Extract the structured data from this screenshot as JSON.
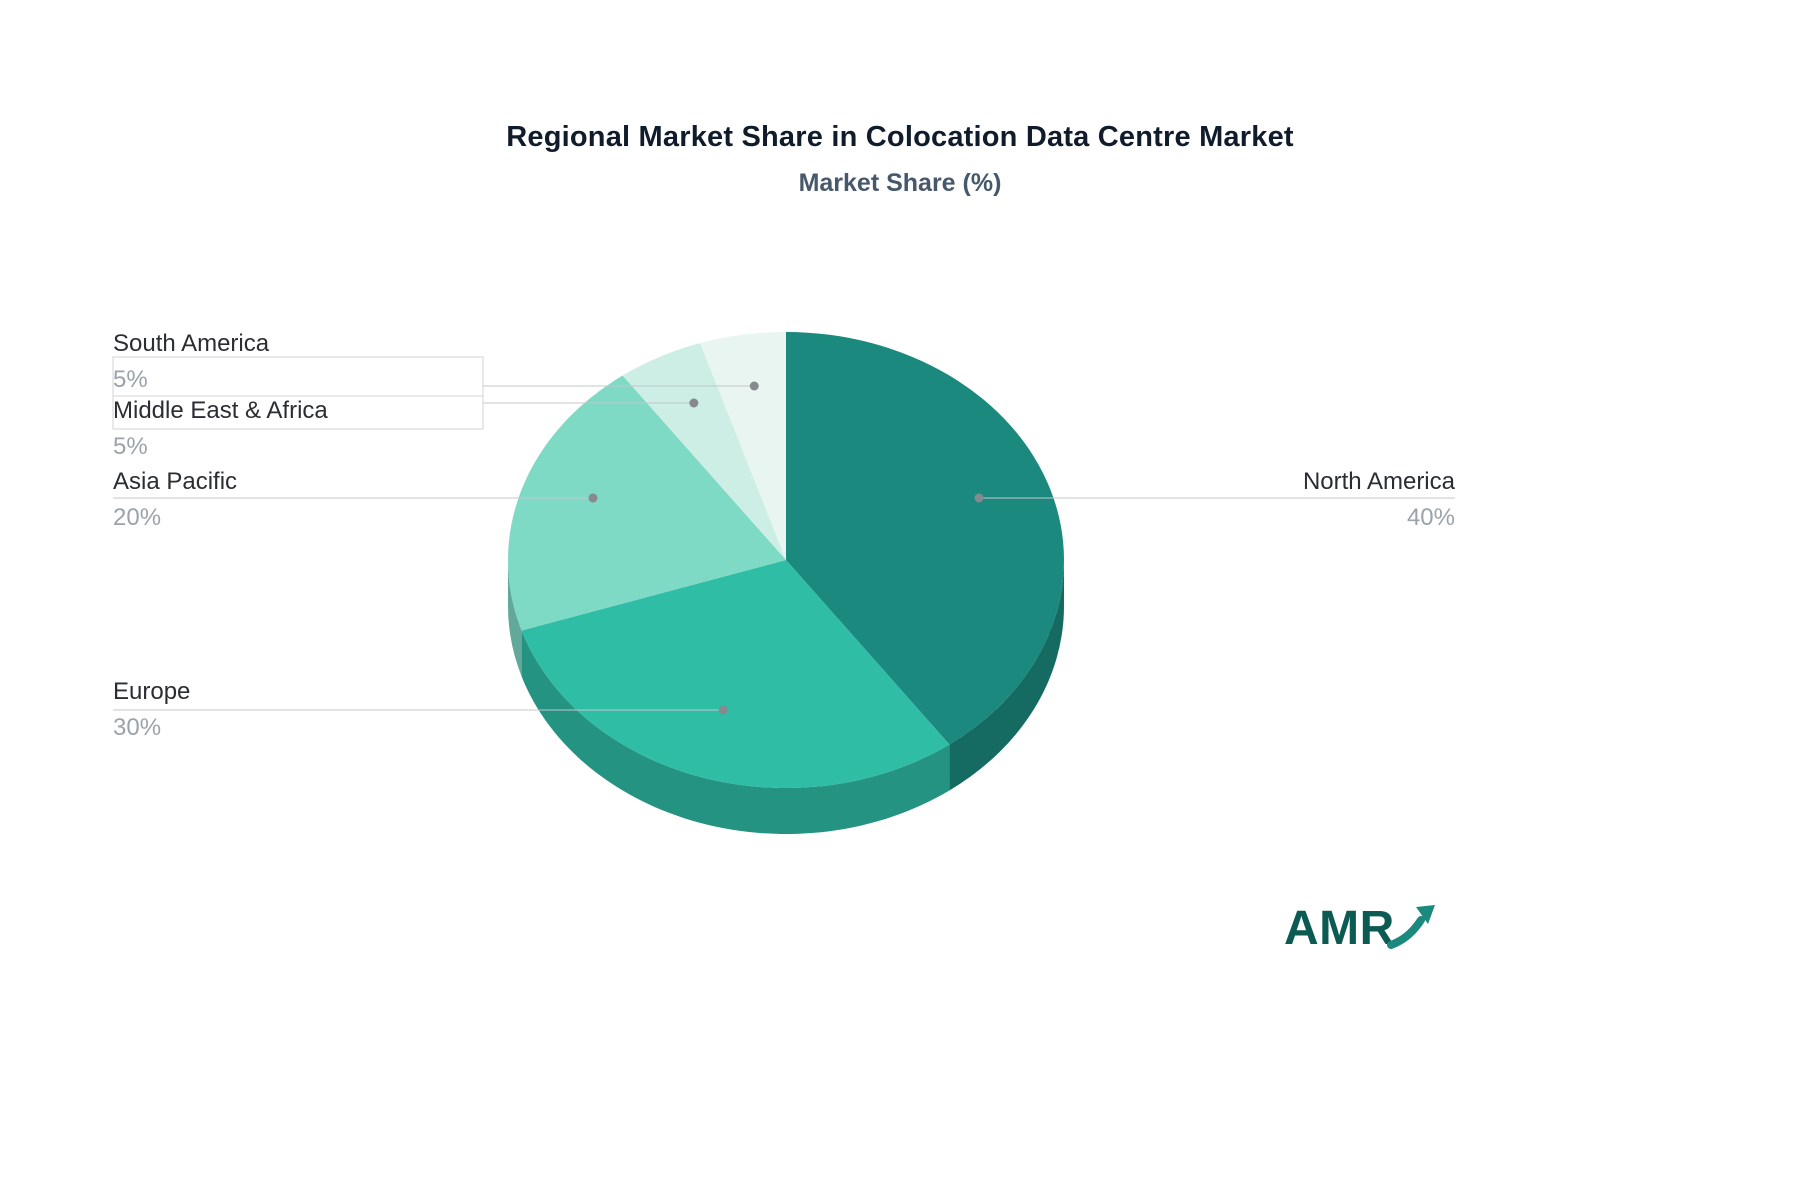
{
  "title": "Regional Market Share in Colocation Data Centre Market",
  "subtitle": "Market Share (%)",
  "logo": {
    "text": "AMR"
  },
  "chart_data": {
    "type": "pie",
    "title": "Regional Market Share in Colocation Data Centre Market",
    "subtitle": "Market Share (%)",
    "start_angle_deg": 0,
    "direction": "clockwise",
    "style": "3d-pie",
    "legend_position": "none",
    "slices": [
      {
        "label": "North America",
        "value": 40,
        "display": "40%",
        "color": "#1b897e"
      },
      {
        "label": "Europe",
        "value": 30,
        "display": "30%",
        "color": "#2fbda6"
      },
      {
        "label": "Asia Pacific",
        "value": 20,
        "display": "20%",
        "color": "#7ed9c5"
      },
      {
        "label": "Middle East & Africa",
        "value": 5,
        "display": "5%",
        "color": "#cceee4"
      },
      {
        "label": "South America",
        "value": 5,
        "display": "5%",
        "color": "#e8f5f1"
      }
    ],
    "leader_line_color": "#c3c7cb",
    "leader_dot_color": "#86898d",
    "label_color": "#2a2e33",
    "value_color": "#9aa3ab"
  }
}
